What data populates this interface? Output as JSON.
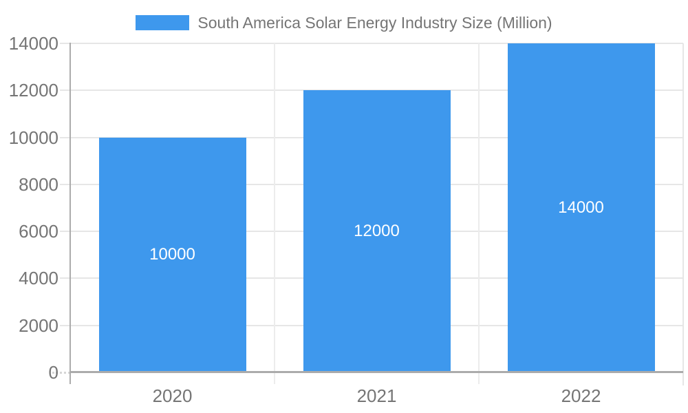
{
  "chart_data": {
    "type": "bar",
    "title": "South America Solar Energy Industry Size (Million)",
    "categories": [
      "2020",
      "2021",
      "2022"
    ],
    "values": [
      10000,
      12000,
      14000
    ],
    "bar_labels": [
      "10000",
      "12000",
      "14000"
    ],
    "yticks": [
      0,
      2000,
      4000,
      6000,
      8000,
      10000,
      12000,
      14000
    ],
    "ytick_labels": [
      "0",
      "2000",
      "4000",
      "6000",
      "8000",
      "10000",
      "12000",
      "14000"
    ],
    "ylim": [
      0,
      14000
    ],
    "xlabel": "",
    "ylabel": "",
    "grid": true,
    "legend_position": "top",
    "bar_label_position": "inside-center",
    "colors": {
      "bar": "#3e98ed",
      "bar_label": "#ffffff",
      "axis_line": "#ababab",
      "gridline": "#e6e6e6",
      "vertical_gridline": "#ececec",
      "tick_text": "#757575",
      "legend_text": "#757575",
      "background": "#ffffff"
    }
  }
}
